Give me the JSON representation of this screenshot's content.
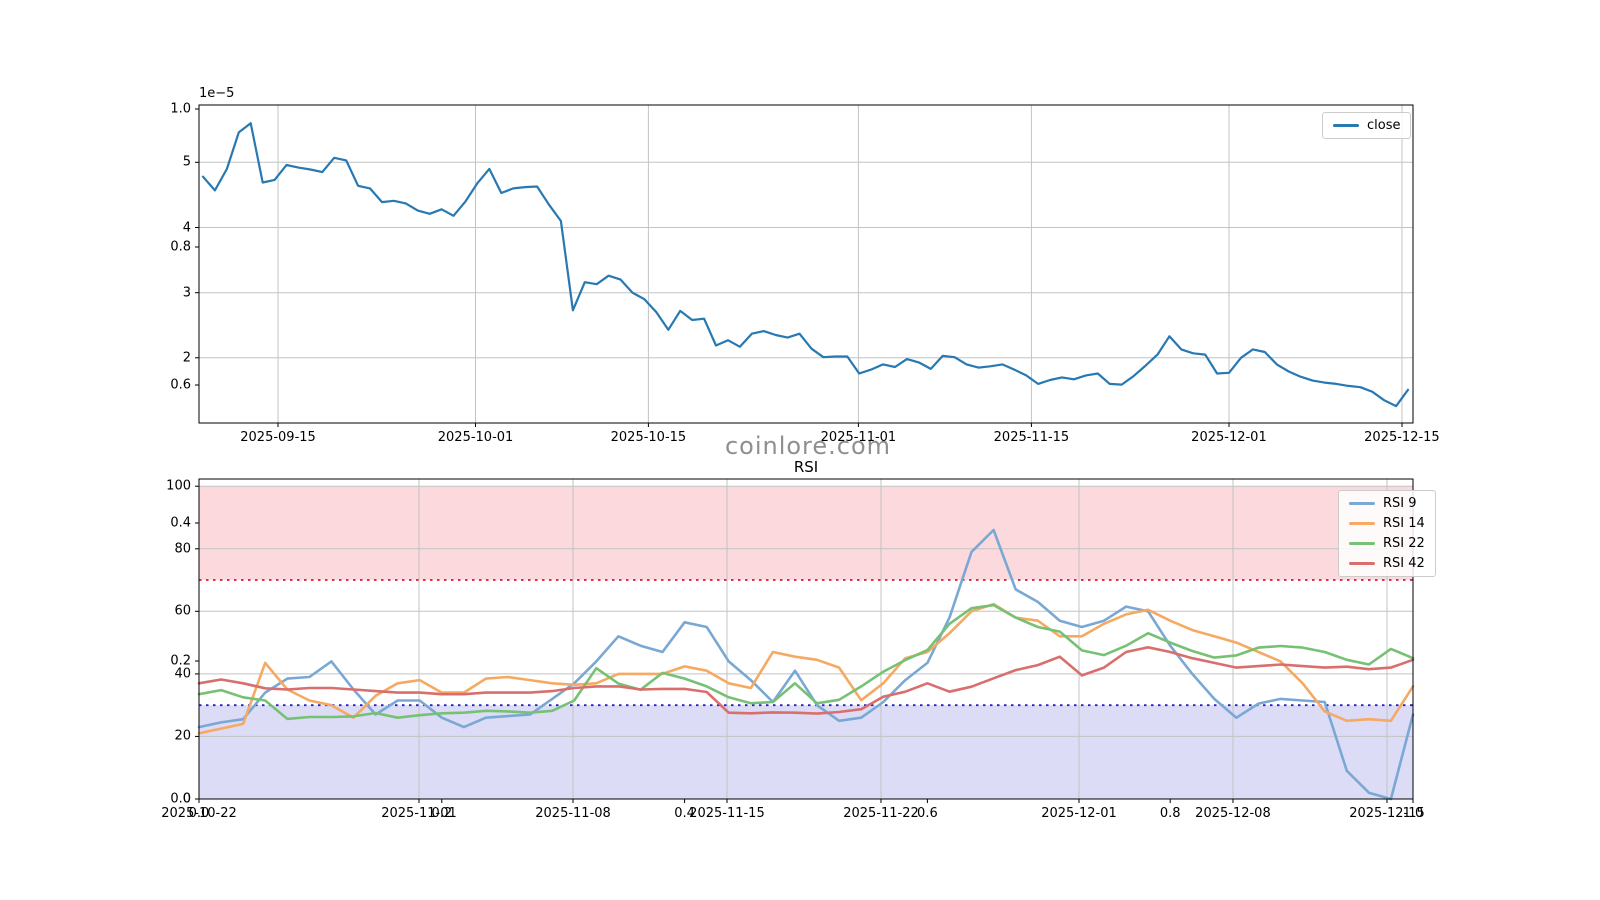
{
  "watermark": "coinlore.com",
  "offset_label": "1e−5",
  "colors": {
    "close_line": "#2878b2",
    "rsi9": "#7aa8d4",
    "rsi14": "#f5a962",
    "rsi22": "#77c175",
    "rsi42": "#d96f6d",
    "overbought_band": "#fbd9dc",
    "oversold_band": "#dddcf6",
    "overbought_line": "#dc143c",
    "oversold_line": "#2222cc",
    "grid": "#c3c3c3",
    "frame": "#000000",
    "watermark_color": "#8f8f8f"
  },
  "overlay_axis": {
    "x_labels": [
      "0.0",
      "0.2",
      "0.4",
      "0.6",
      "0.8",
      "1.0"
    ],
    "y_labels": [
      "1.0",
      "0.8",
      "0.6",
      "0.4",
      "0.2",
      "0.0"
    ]
  },
  "chart_data": [
    {
      "type": "line",
      "name": "price",
      "title": "",
      "ylabel": "",
      "unit": "1e-5",
      "ylim": [
        1.0,
        5.88
      ],
      "x_start_date": "2025-09-08",
      "x_interval": "daily",
      "legend_position": "upper right",
      "grid": true,
      "y_ticks": [
        {
          "label": "2",
          "v": 2
        },
        {
          "label": "3",
          "v": 3
        },
        {
          "label": "4",
          "v": 4
        },
        {
          "label": "5",
          "v": 5
        }
      ],
      "x_ticks": [
        {
          "label": "2025-09-15",
          "f": 0.0651
        },
        {
          "label": "2025-10-01",
          "f": 0.2278
        },
        {
          "label": "2025-10-15",
          "f": 0.3702
        },
        {
          "label": "2025-11-01",
          "f": 0.5432
        },
        {
          "label": "2025-11-15",
          "f": 0.6857
        },
        {
          "label": "2025-12-01",
          "f": 0.8484
        },
        {
          "label": "2025-12-15",
          "f": 0.9909
        }
      ],
      "series": [
        {
          "name": "close",
          "color_key": "close_line",
          "values": [
            4.78,
            4.57,
            4.9,
            5.46,
            5.6,
            4.69,
            4.73,
            4.96,
            4.92,
            4.89,
            4.85,
            5.07,
            5.03,
            4.64,
            4.6,
            4.39,
            4.41,
            4.37,
            4.26,
            4.21,
            4.28,
            4.18,
            4.4,
            4.68,
            4.9,
            4.53,
            4.6,
            4.62,
            4.63,
            4.35,
            4.1,
            2.73,
            3.16,
            3.13,
            3.26,
            3.2,
            3.0,
            2.9,
            2.7,
            2.43,
            2.72,
            2.58,
            2.6,
            2.19,
            2.27,
            2.17,
            2.37,
            2.41,
            2.35,
            2.31,
            2.37,
            2.14,
            2.01,
            2.02,
            2.02,
            1.76,
            1.82,
            1.9,
            1.86,
            1.98,
            1.93,
            1.83,
            2.03,
            2.01,
            1.9,
            1.85,
            1.87,
            1.9,
            1.82,
            1.73,
            1.6,
            1.66,
            1.7,
            1.67,
            1.73,
            1.76,
            1.6,
            1.59,
            1.72,
            1.88,
            2.05,
            2.33,
            2.13,
            2.07,
            2.05,
            1.76,
            1.77,
            2.0,
            2.13,
            2.09,
            1.9,
            1.79,
            1.71,
            1.65,
            1.62,
            1.6,
            1.57,
            1.55,
            1.48,
            1.35,
            1.26,
            1.51
          ]
        }
      ]
    },
    {
      "type": "line",
      "name": "rsi",
      "title": "RSI",
      "ylim": [
        0,
        102.3
      ],
      "x_start_date": "2025-10-22",
      "x_interval": "daily",
      "legend_position": "upper right",
      "grid": true,
      "bands": [
        {
          "from": 70,
          "to": 100,
          "color_key": "overbought_band"
        },
        {
          "from": 0,
          "to": 30,
          "color_key": "oversold_band"
        }
      ],
      "hlines": [
        {
          "v": 70,
          "color_key": "overbought_line",
          "style": "dotted"
        },
        {
          "v": 30,
          "color_key": "oversold_line",
          "style": "dotted"
        }
      ],
      "y_ticks": [
        {
          "label": "0",
          "v": 0
        },
        {
          "label": "20",
          "v": 20
        },
        {
          "label": "40",
          "v": 40
        },
        {
          "label": "60",
          "v": 60
        },
        {
          "label": "80",
          "v": 80
        },
        {
          "label": "100",
          "v": 100
        }
      ],
      "x_ticks": [
        {
          "label": "2025-10-22",
          "f": 0.0
        },
        {
          "label": "2025-11-01",
          "f": 0.1812
        },
        {
          "label": "2025-11-08",
          "f": 0.3081
        },
        {
          "label": "2025-11-15",
          "f": 0.4349
        },
        {
          "label": "2025-11-22",
          "f": 0.5618
        },
        {
          "label": "2025-12-01",
          "f": 0.7249
        },
        {
          "label": "2025-12-08",
          "f": 0.8517
        },
        {
          "label": "2025-12-15",
          "f": 0.9786
        }
      ],
      "series": [
        {
          "name": "RSI 9",
          "color_key": "rsi9",
          "values": [
            23,
            24.5,
            25.5,
            34,
            38.5,
            39,
            44,
            35,
            27,
            31.5,
            31.5,
            26,
            23,
            26,
            26.5,
            27,
            32,
            37,
            44,
            52,
            49,
            47,
            56.5,
            55,
            44,
            38,
            31,
            41,
            30,
            25,
            26,
            31,
            38,
            43.5,
            58,
            79,
            86,
            67,
            63,
            57,
            55,
            57,
            61.5,
            60,
            49,
            40,
            32,
            26,
            30.5,
            32,
            31.5,
            31,
            9,
            2,
            0,
            27
          ]
        },
        {
          "name": "RSI 14",
          "color_key": "rsi14",
          "values": [
            21,
            22.5,
            24,
            43.5,
            35,
            31.5,
            30,
            26,
            33,
            37,
            38,
            34,
            34,
            38.5,
            39,
            38,
            37,
            36.5,
            37,
            40,
            40,
            40,
            42.4,
            41,
            37,
            35.5,
            47,
            45.5,
            44.5,
            42,
            31.6,
            37,
            45,
            47,
            53,
            60,
            62.3,
            58,
            57,
            52,
            52,
            56,
            59,
            60.5,
            57,
            54,
            52,
            50,
            47,
            44,
            37,
            28,
            25,
            25.5,
            25,
            36
          ]
        },
        {
          "name": "RSI 22",
          "color_key": "rsi22",
          "values": [
            33.5,
            34.8,
            32.5,
            31.5,
            25.6,
            26.2,
            26.2,
            26.4,
            27.5,
            26,
            26.8,
            27.4,
            27.6,
            28.2,
            28,
            27.6,
            28.2,
            31.5,
            41.8,
            36.9,
            34.9,
            40.3,
            38.5,
            36,
            32.5,
            30.6,
            31,
            37,
            30.6,
            31.7,
            36,
            40.7,
            44.4,
            47.6,
            56,
            61,
            62,
            58,
            55,
            53.5,
            47.5,
            46,
            49,
            53,
            50,
            47.3,
            45.2,
            45.9,
            48.4,
            48.9,
            48.4,
            47,
            44.5,
            43,
            48,
            45
          ]
        },
        {
          "name": "RSI 42",
          "color_key": "rsi42",
          "values": [
            37,
            38.2,
            37,
            35.4,
            35,
            35.5,
            35.5,
            35,
            34.5,
            34,
            34,
            33.5,
            33.5,
            34,
            34,
            34,
            34.5,
            35.5,
            36,
            36,
            35,
            35.2,
            35.2,
            34.2,
            27.6,
            27.4,
            27.7,
            27.6,
            27.3,
            27.8,
            28.7,
            32.7,
            34.3,
            37,
            34.3,
            35.9,
            38.6,
            41.2,
            42.8,
            45.5,
            39.5,
            42,
            47,
            48.5,
            47,
            45,
            43.5,
            42,
            42.5,
            43,
            42.5,
            42,
            42.3,
            41.5,
            42,
            44.5
          ]
        }
      ]
    }
  ]
}
